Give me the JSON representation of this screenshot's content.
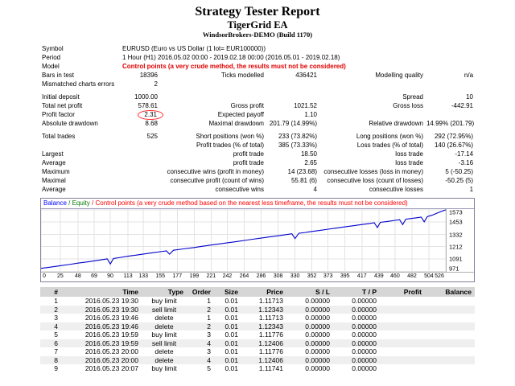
{
  "header": {
    "title": "Strategy Tester Report",
    "ea_name": "TigerGrid EA",
    "broker": "WindsorBrokers-DEMO (Build 1170)"
  },
  "summary": {
    "symbol": {
      "label": "Symbol",
      "value": "EURUSD (Euro vs US Dollar (1 lot= EUR100000))"
    },
    "period": {
      "label": "Period",
      "value": "1 Hour (H1) 2016.05.02 00:00 - 2019.02.18 00:00 (2016.05.01 - 2019.02.18)"
    },
    "model": {
      "label": "Model",
      "value": "Control points (a very crude method, the results must not be considered)"
    },
    "bars": {
      "label": "Bars in test",
      "value": "18396"
    },
    "ticks": {
      "label": "Ticks modelled",
      "value": "436421"
    },
    "quality": {
      "label": "Modelling quality",
      "value": "n/a"
    },
    "mismatch": {
      "label": "Mismatched charts errors",
      "value": "2"
    },
    "deposit": {
      "label": "Initial deposit",
      "value": "1000.00"
    },
    "spread": {
      "label": "Spread",
      "value": "10"
    },
    "net_profit": {
      "label": "Total net profit",
      "value": "578.61"
    },
    "gross_profit": {
      "label": "Gross profit",
      "value": "1021.52"
    },
    "gross_loss": {
      "label": "Gross loss",
      "value": "-442.91"
    },
    "profit_factor": {
      "label": "Profit factor",
      "value": "2.31"
    },
    "expected_payoff": {
      "label": "Expected payoff",
      "value": "1.10"
    },
    "abs_dd": {
      "label": "Absolute drawdown",
      "value": "8.68"
    },
    "max_dd": {
      "label": "Maximal drawdown",
      "value": "201.79 (14.99%)"
    },
    "rel_dd": {
      "label": "Relative drawdown",
      "value": "14.99% (201.79)"
    },
    "total_trades": {
      "label": "Total trades",
      "value": "525"
    },
    "short_pos": {
      "label": "Short positions (won %)",
      "value": "233 (73.82%)"
    },
    "long_pos": {
      "label": "Long positions (won %)",
      "value": "292 (72.95%)"
    },
    "profit_trades": {
      "label": "Profit trades (% of total)",
      "value": "385 (73.33%)"
    },
    "loss_trades": {
      "label": "Loss trades (% of total)",
      "value": "140 (26.67%)"
    },
    "largest": {
      "label": "Largest"
    },
    "largest_profit": {
      "label": "profit trade",
      "value": "18.50"
    },
    "largest_loss": {
      "label": "loss trade",
      "value": "-17.14"
    },
    "average": {
      "label": "Average"
    },
    "avg_profit": {
      "label": "profit trade",
      "value": "2.65"
    },
    "avg_loss": {
      "label": "loss trade",
      "value": "-3.16"
    },
    "maximum": {
      "label": "Maximum"
    },
    "max_cons_wins": {
      "label": "consecutive wins (profit in money)",
      "value": "14 (23.68)"
    },
    "max_cons_losses": {
      "label": "consecutive losses (loss in money)",
      "value": "5 (-50.25)"
    },
    "maximal": {
      "label": "Maximal"
    },
    "max_cons_profit": {
      "label": "consecutive profit (count of wins)",
      "value": "55.81 (6)"
    },
    "max_cons_loss": {
      "label": "consecutive loss (count of losses)",
      "value": "-50.25 (5)"
    },
    "avg_cons": {
      "label": "Average"
    },
    "avg_cons_wins": {
      "label": "consecutive wins",
      "value": "4"
    },
    "avg_cons_losses": {
      "label": "consecutive losses",
      "value": "1"
    }
  },
  "chart_data": {
    "type": "line",
    "legend": {
      "balance": {
        "text": "Balance",
        "color": "#0000ff"
      },
      "equity": {
        "text": " / Equity",
        "color": "#007800"
      },
      "note": {
        "text": " / Control points (a very crude method based on the nearest less timeframe, the results must not be considered)",
        "color": "#ff0000"
      }
    },
    "xlim": [
      0,
      526
    ],
    "ylim": [
      966,
      1580
    ],
    "x_ticks": [
      0,
      25,
      48,
      69,
      90,
      113,
      133,
      155,
      177,
      199,
      221,
      242,
      264,
      286,
      308,
      330,
      352,
      373,
      395,
      417,
      439,
      460,
      482,
      504,
      526
    ],
    "y_ticks": [
      971,
      1091,
      1212,
      1332,
      1453,
      1573
    ],
    "series": [
      {
        "name": "Balance",
        "color": "#0000cc",
        "points": [
          [
            0,
            1000
          ],
          [
            12,
            1012
          ],
          [
            25,
            1026
          ],
          [
            36,
            1037
          ],
          [
            48,
            1051
          ],
          [
            60,
            1063
          ],
          [
            69,
            1073
          ],
          [
            80,
            1086
          ],
          [
            86,
            1093
          ],
          [
            90,
            1042
          ],
          [
            94,
            1096
          ],
          [
            104,
            1108
          ],
          [
            113,
            1119
          ],
          [
            124,
            1130
          ],
          [
            133,
            1140
          ],
          [
            144,
            1152
          ],
          [
            155,
            1163
          ],
          [
            163,
            1171
          ],
          [
            167,
            1138
          ],
          [
            172,
            1177
          ],
          [
            185,
            1190
          ],
          [
            199,
            1204
          ],
          [
            210,
            1216
          ],
          [
            221,
            1228
          ],
          [
            232,
            1239
          ],
          [
            242,
            1250
          ],
          [
            254,
            1262
          ],
          [
            264,
            1273
          ],
          [
            275,
            1285
          ],
          [
            286,
            1296
          ],
          [
            297,
            1308
          ],
          [
            308,
            1319
          ],
          [
            318,
            1330
          ],
          [
            326,
            1338
          ],
          [
            330,
            1291
          ],
          [
            335,
            1343
          ],
          [
            344,
            1352
          ],
          [
            352,
            1361
          ],
          [
            363,
            1372
          ],
          [
            373,
            1383
          ],
          [
            384,
            1394
          ],
          [
            395,
            1406
          ],
          [
            406,
            1417
          ],
          [
            417,
            1429
          ],
          [
            427,
            1439
          ],
          [
            433,
            1446
          ],
          [
            437,
            1400
          ],
          [
            441,
            1450
          ],
          [
            450,
            1459
          ],
          [
            460,
            1470
          ],
          [
            466,
            1476
          ],
          [
            470,
            1428
          ],
          [
            474,
            1481
          ],
          [
            482,
            1489
          ],
          [
            489,
            1496
          ],
          [
            494,
            1501
          ],
          [
            498,
            1456
          ],
          [
            502,
            1506
          ],
          [
            508,
            1519
          ],
          [
            514,
            1538
          ],
          [
            520,
            1556
          ],
          [
            526,
            1573
          ]
        ]
      }
    ]
  },
  "trades": {
    "columns": [
      "#",
      "Time",
      "Type",
      "Order",
      "Size",
      "Price",
      "S / L",
      "T / P",
      "Profit",
      "Balance"
    ],
    "rows": [
      [
        "1",
        "2016.05.23 19:30",
        "buy limit",
        "1",
        "0.01",
        "1.11713",
        "0.00000",
        "0.00000",
        "",
        ""
      ],
      [
        "2",
        "2016.05.23 19:30",
        "sell limit",
        "2",
        "0.01",
        "1.12343",
        "0.00000",
        "0.00000",
        "",
        ""
      ],
      [
        "3",
        "2016.05.23 19:46",
        "delete",
        "1",
        "0.01",
        "1.11713",
        "0.00000",
        "0.00000",
        "",
        ""
      ],
      [
        "4",
        "2016.05.23 19:46",
        "delete",
        "2",
        "0.01",
        "1.12343",
        "0.00000",
        "0.00000",
        "",
        ""
      ],
      [
        "5",
        "2016.05.23 19:59",
        "buy limit",
        "3",
        "0.01",
        "1.11776",
        "0.00000",
        "0.00000",
        "",
        ""
      ],
      [
        "6",
        "2016.05.23 19:59",
        "sell limit",
        "4",
        "0.01",
        "1.12406",
        "0.00000",
        "0.00000",
        "",
        ""
      ],
      [
        "7",
        "2016.05.23 20:00",
        "delete",
        "3",
        "0.01",
        "1.11776",
        "0.00000",
        "0.00000",
        "",
        ""
      ],
      [
        "8",
        "2016.05.23 20:00",
        "delete",
        "4",
        "0.01",
        "1.12406",
        "0.00000",
        "0.00000",
        "",
        ""
      ],
      [
        "9",
        "2016.05.23 20:07",
        "buy limit",
        "5",
        "0.01",
        "1.11741",
        "0.00000",
        "0.00000",
        "",
        ""
      ]
    ]
  }
}
